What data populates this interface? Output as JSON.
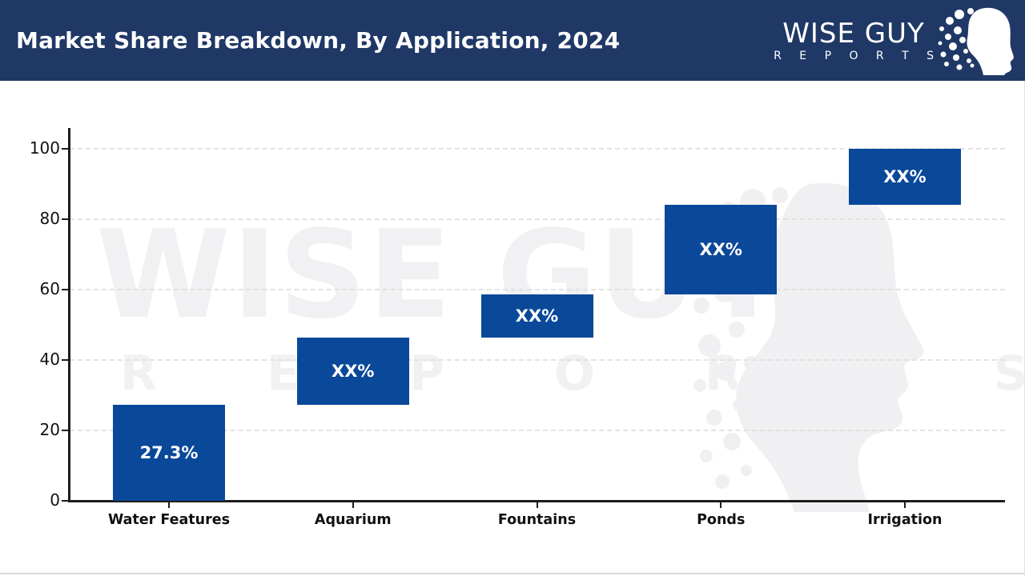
{
  "header": {
    "title": "Market Share Breakdown, By Application, 2024",
    "background_color": "#1f3866",
    "logo": {
      "wordmark": "WISE GUY",
      "sub_label": "R E P O R T S"
    }
  },
  "watermark": {
    "wordmark": "WISE GUY",
    "sub_label": "R E P O R T S",
    "color": "#f1f1f3"
  },
  "chart_data": {
    "type": "bar",
    "subtype": "waterfall",
    "title": "Market Share Breakdown, By Application, 2024",
    "categories": [
      "Water Features",
      "Aquarium",
      "Fountains",
      "Ponds",
      "Irrigation"
    ],
    "bars": [
      {
        "category": "Water Features",
        "start": 0,
        "end": 27.3,
        "label": "27.3%"
      },
      {
        "category": "Aquarium",
        "start": 27.3,
        "end": 46.3,
        "label": "XX%"
      },
      {
        "category": "Fountains",
        "start": 46.3,
        "end": 58.6,
        "label": "XX%"
      },
      {
        "category": "Ponds",
        "start": 58.6,
        "end": 84,
        "label": "XX%"
      },
      {
        "category": "Irrigation",
        "start": 84,
        "end": 100,
        "label": "XX%"
      }
    ],
    "xlabel": "",
    "ylabel": "",
    "ylim": [
      0,
      100
    ],
    "yticks": [
      0,
      20,
      40,
      60,
      80,
      100
    ],
    "grid": "horizontal-dashed",
    "legend": "none",
    "bar_color": "#0a4899",
    "bar_label_color": "#ffffff",
    "axis_color": "#1c1c1c",
    "gridline_color": "#e2e2e2"
  }
}
